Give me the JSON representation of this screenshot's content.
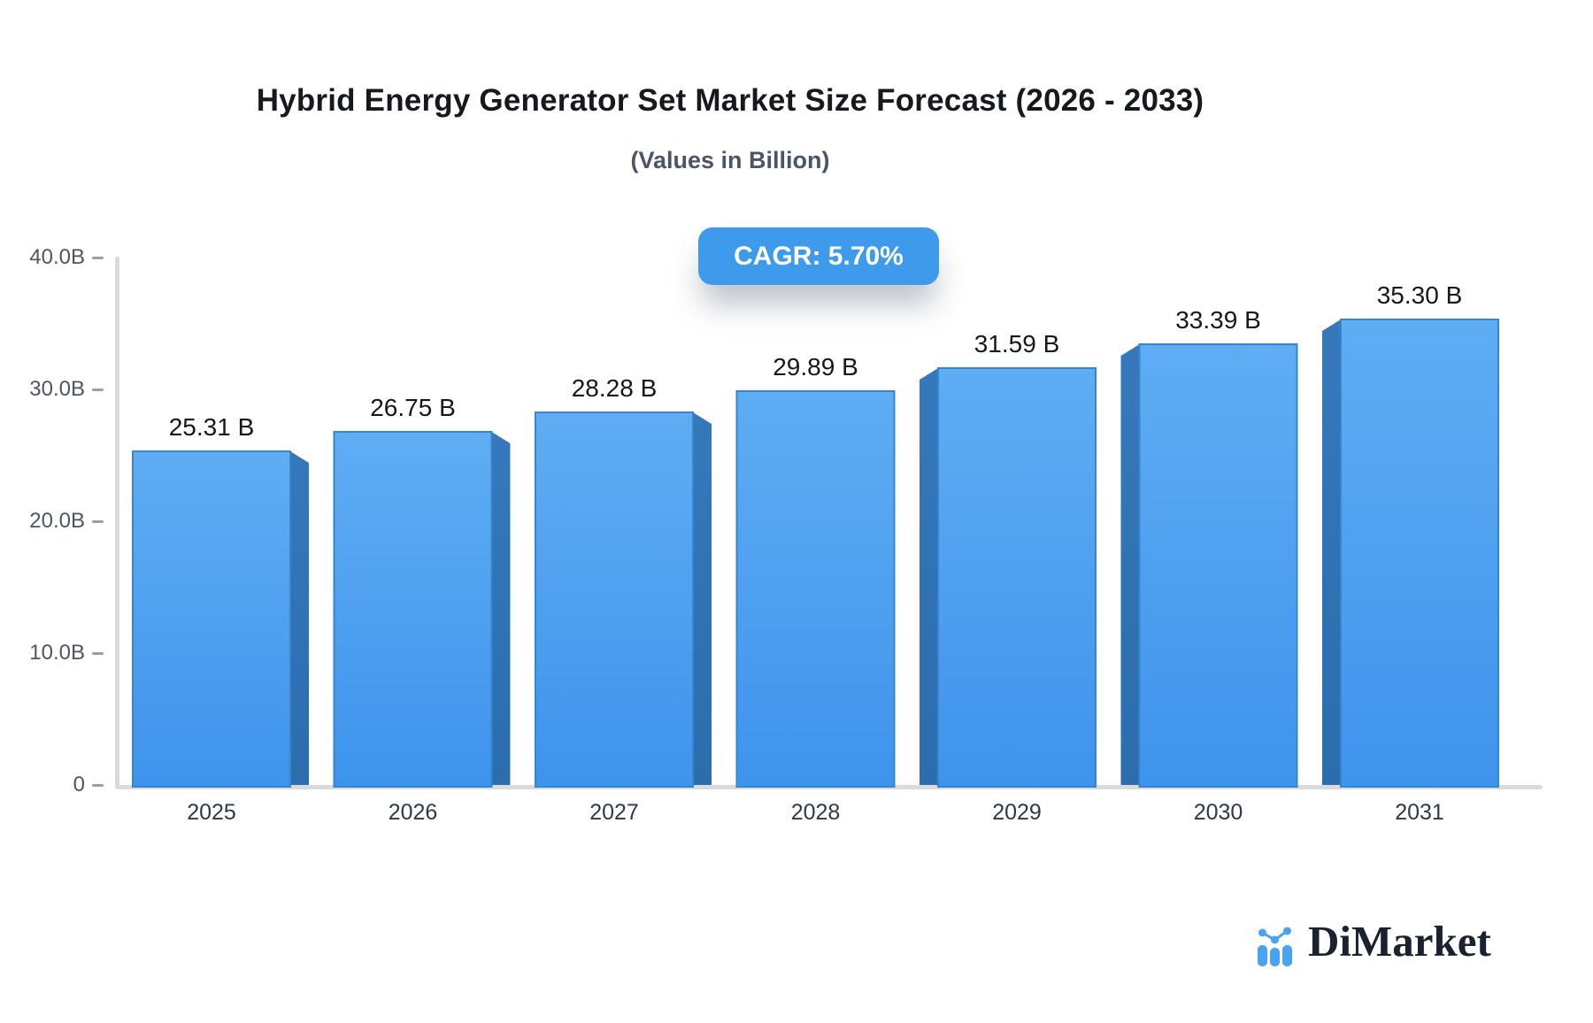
{
  "header": {
    "title": "Hybrid Energy Generator Set Market Size Forecast (2026 - 2033)",
    "subtitle": "(Values in Billion)"
  },
  "badge": {
    "label": "CAGR: 5.70%",
    "background": "#3e9bec",
    "text_color": "#ffffff"
  },
  "chart_data": {
    "type": "bar",
    "title": "Hybrid Energy Generator Set Market Size Forecast (2026 - 2033)",
    "subtitle": "(Values in Billion)",
    "categories": [
      "2025",
      "2026",
      "2027",
      "2028",
      "2029",
      "2030",
      "2031"
    ],
    "values": [
      25.31,
      26.75,
      28.28,
      29.89,
      31.59,
      33.39,
      35.3
    ],
    "value_labels": [
      "25.31 B",
      "26.75 B",
      "28.28 B",
      "29.89 B",
      "31.59 B",
      "33.39 B",
      "35.30 B"
    ],
    "xlabel": "",
    "ylabel": "",
    "ylim": [
      0,
      40
    ],
    "yticks": [
      {
        "value": 40,
        "label": "40.0B"
      },
      {
        "value": 30,
        "label": "30.0B"
      },
      {
        "value": 20,
        "label": "20.0B"
      },
      {
        "value": 10,
        "label": "10.0B"
      },
      {
        "value": 0,
        "label": "0"
      }
    ],
    "grid": false,
    "legend": "none",
    "bar_style": "3d-perspective-center-vanishing-point",
    "annotation": "CAGR: 5.70%",
    "colors": {
      "bar_front_top": "#5fadf3",
      "bar_front_bottom": "#3e93ec",
      "bar_border": "#3585cf",
      "bar_side_top": "#3579bc",
      "bar_side_bottom": "#2b6dad",
      "axis_line": "#d8dadc",
      "tick_mark": "#98a0a8",
      "y_tick_label": "#4d5662",
      "x_tick_label": "#2c3a4b",
      "value_label": "#14191f",
      "badge_blue": "#3e9bec"
    }
  },
  "logo": {
    "text": "DiMarket",
    "icon": "bar-line-chart-icon",
    "icon_color": "#4aa2f2",
    "text_color": "#1a222f"
  }
}
